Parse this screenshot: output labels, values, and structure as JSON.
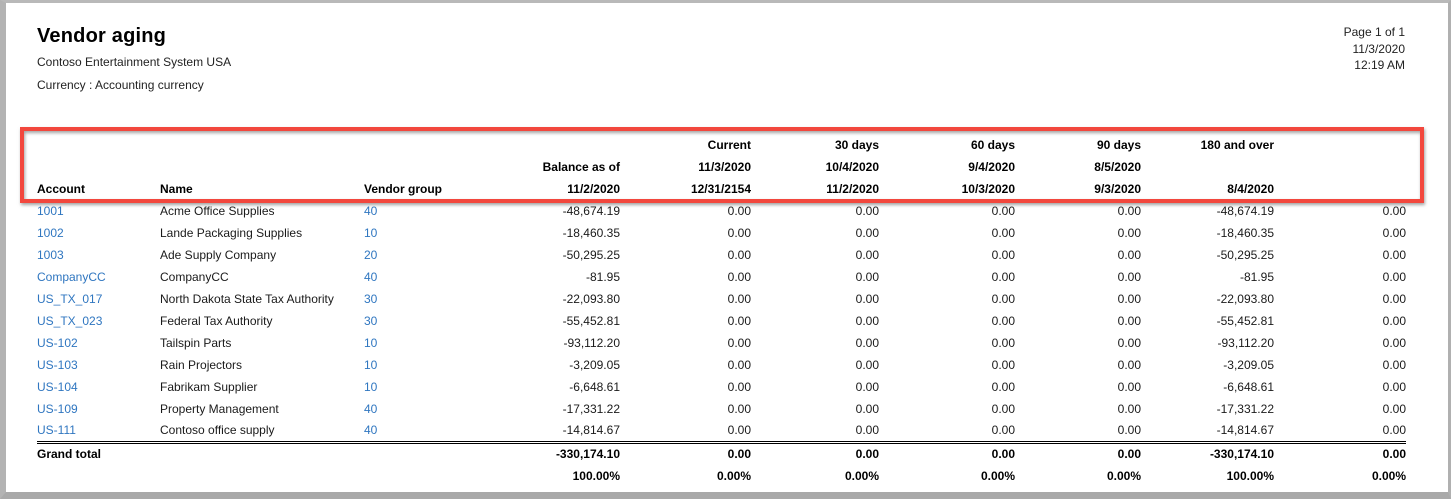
{
  "report": {
    "title": "Vendor aging",
    "company": "Contoso Entertainment System USA",
    "currency_line": "Currency : Accounting currency"
  },
  "page_info": {
    "page": "Page 1 of 1",
    "date": "11/3/2020",
    "time": "12:19 AM"
  },
  "table": {
    "columns": [
      "account",
      "name",
      "vendor-group",
      "balance",
      "current",
      "30-days",
      "60-days",
      "90-days",
      "180-and-over",
      "extra"
    ],
    "header_rows": [
      [
        "",
        "",
        "",
        "",
        "Current",
        "30 days",
        "60 days",
        "90 days",
        "180 and over",
        ""
      ],
      [
        "",
        "",
        "",
        "Balance as of",
        "11/3/2020",
        "10/4/2020",
        "9/4/2020",
        "8/5/2020",
        "",
        ""
      ],
      [
        "Account",
        "Name",
        "Vendor group",
        "11/2/2020",
        "12/31/2154",
        "11/2/2020",
        "10/3/2020",
        "9/3/2020",
        "8/4/2020",
        ""
      ]
    ],
    "rows": [
      [
        "1001",
        "Acme Office Supplies",
        "40",
        "-48,674.19",
        "0.00",
        "0.00",
        "0.00",
        "0.00",
        "-48,674.19",
        "0.00"
      ],
      [
        "1002",
        "Lande Packaging Supplies",
        "10",
        "-18,460.35",
        "0.00",
        "0.00",
        "0.00",
        "0.00",
        "-18,460.35",
        "0.00"
      ],
      [
        "1003",
        "Ade Supply Company",
        "20",
        "-50,295.25",
        "0.00",
        "0.00",
        "0.00",
        "0.00",
        "-50,295.25",
        "0.00"
      ],
      [
        "CompanyCC",
        "CompanyCC",
        "40",
        "-81.95",
        "0.00",
        "0.00",
        "0.00",
        "0.00",
        "-81.95",
        "0.00"
      ],
      [
        "US_TX_017",
        "North Dakota State Tax Authority",
        "30",
        "-22,093.80",
        "0.00",
        "0.00",
        "0.00",
        "0.00",
        "-22,093.80",
        "0.00"
      ],
      [
        "US_TX_023",
        "Federal Tax Authority",
        "30",
        "-55,452.81",
        "0.00",
        "0.00",
        "0.00",
        "0.00",
        "-55,452.81",
        "0.00"
      ],
      [
        "US-102",
        "Tailspin Parts",
        "10",
        "-93,112.20",
        "0.00",
        "0.00",
        "0.00",
        "0.00",
        "-93,112.20",
        "0.00"
      ],
      [
        "US-103",
        "Rain Projectors",
        "10",
        "-3,209.05",
        "0.00",
        "0.00",
        "0.00",
        "0.00",
        "-3,209.05",
        "0.00"
      ],
      [
        "US-104",
        "Fabrikam Supplier",
        "10",
        "-6,648.61",
        "0.00",
        "0.00",
        "0.00",
        "0.00",
        "-6,648.61",
        "0.00"
      ],
      [
        "US-109",
        "Property Management",
        "40",
        "-17,331.22",
        "0.00",
        "0.00",
        "0.00",
        "0.00",
        "-17,331.22",
        "0.00"
      ],
      [
        "US-111",
        "Contoso office supply",
        "40",
        "-14,814.67",
        "0.00",
        "0.00",
        "0.00",
        "0.00",
        "-14,814.67",
        "0.00"
      ]
    ],
    "grand_total": [
      "Grand total",
      "",
      "",
      "-330,174.10",
      "0.00",
      "0.00",
      "0.00",
      "0.00",
      "-330,174.10",
      "0.00"
    ],
    "percent_row": [
      "",
      "",
      "",
      "100.00%",
      "0.00%",
      "0.00%",
      "0.00%",
      "0.00%",
      "100.00%",
      "0.00%"
    ]
  },
  "colors": {
    "link_blue": "#2f76c0",
    "highlight_red": "#f2473d"
  }
}
